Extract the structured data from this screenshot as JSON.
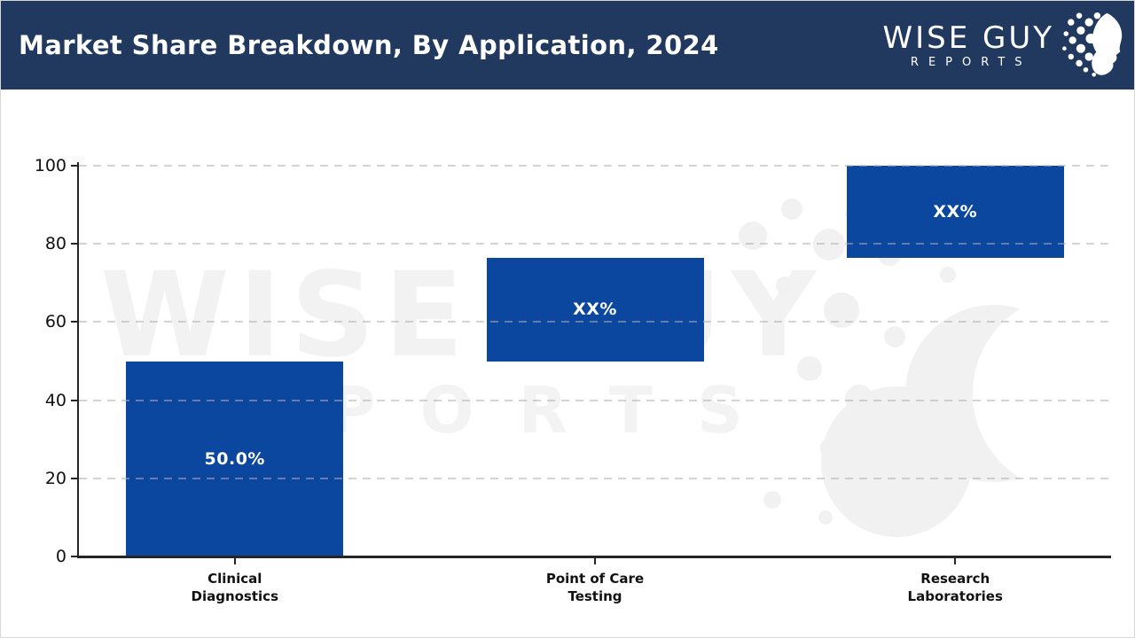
{
  "header": {
    "title": "Market Share Breakdown, By Application, 2024",
    "background_color": "#21395f",
    "logo": {
      "line1": "WISE GUY",
      "line2": "REPORTS"
    }
  },
  "watermark": {
    "line1": "WISE GUY",
    "line2": "REPORTS"
  },
  "chart_data": {
    "type": "bar",
    "subtype": "stacked-waterfall-segments",
    "title": "Market Share Breakdown, By Application, 2024",
    "categories": [
      [
        "Clinical",
        "Diagnostics"
      ],
      [
        "Point of Care",
        "Testing"
      ],
      [
        "Research",
        "Laboratories"
      ]
    ],
    "segments": [
      {
        "category": "Clinical Diagnostics",
        "start": 0,
        "end": 50,
        "label": "50.0%"
      },
      {
        "category": "Point of Care Testing",
        "start": 50,
        "end": 76.5,
        "label": "XX%"
      },
      {
        "category": "Research Laboratories",
        "start": 76.5,
        "end": 100,
        "label": "XX%"
      }
    ],
    "yticks": [
      0,
      20,
      40,
      60,
      80,
      100
    ],
    "ylim": [
      0,
      100
    ],
    "grid": "dashed-horizontal",
    "legend": "none",
    "bar_color": "#0b479f",
    "axis_color": "#262626",
    "grid_color": "#bdbdbd",
    "label_color": "#ffffff"
  }
}
